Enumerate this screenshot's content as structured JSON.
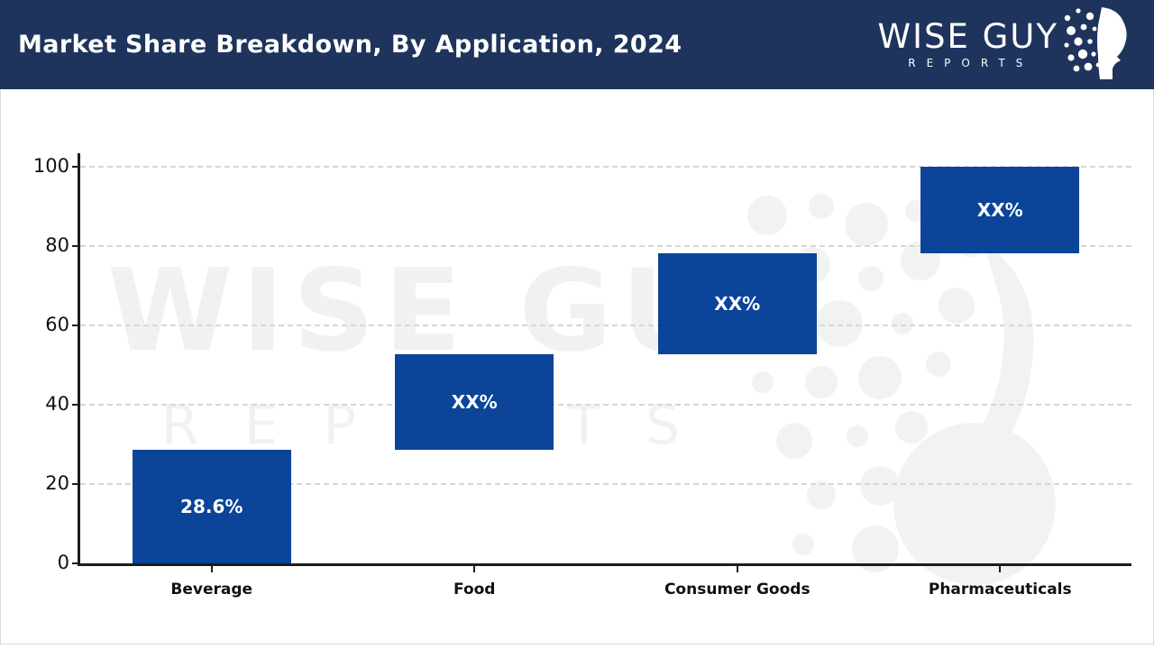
{
  "header": {
    "title": "Market Share Breakdown, By Application, 2024",
    "logo": {
      "brand_line1": "WISE GUY",
      "brand_line2": "REPORTS"
    }
  },
  "watermark": {
    "line1": "WISE GUY",
    "line2": "REPORTS"
  },
  "chart_data": {
    "type": "bar",
    "subtype": "waterfall",
    "title": "Market Share Breakdown, By Application, 2024",
    "categories": [
      "Beverage",
      "Food",
      "Consumer Goods",
      "Pharmaceuticals"
    ],
    "segments": [
      {
        "category": "Beverage",
        "start": 0,
        "end": 28.6,
        "label": "28.6%"
      },
      {
        "category": "Food",
        "start": 28.6,
        "end": 52.7,
        "label": "XX%"
      },
      {
        "category": "Consumer Goods",
        "start": 52.7,
        "end": 78.2,
        "label": "XX%"
      },
      {
        "category": "Pharmaceuticals",
        "start": 78.2,
        "end": 100,
        "label": "XX%"
      }
    ],
    "xlabel": "",
    "ylabel": "",
    "ylim": [
      0,
      100
    ],
    "yticks": [
      0,
      20,
      40,
      60,
      80,
      100
    ],
    "grid": "horizontal-dashed",
    "legend": "none",
    "bar_color": "#0b4499",
    "bar_label_color": "#ffffff"
  },
  "colors": {
    "header_bg": "#1f345c",
    "accent_blue": "#0b4499",
    "grid": "#d6d6d6",
    "axis": "#1c1c1c",
    "watermark": "#f1f1f1"
  }
}
